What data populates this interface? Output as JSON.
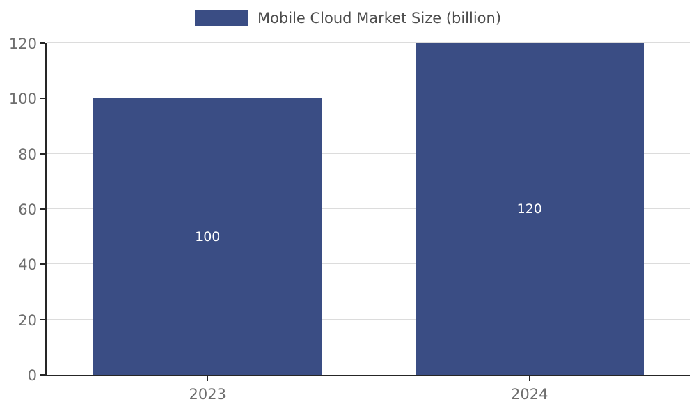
{
  "legend": {
    "label": "Mobile Cloud Market Size (billion)"
  },
  "colors": {
    "bar": "#3a4d84",
    "bar_value_label": "#ffffff",
    "axis_line": "#262626",
    "grid_line": "#dcdcdc",
    "tick_label": "#6e6e6e",
    "legend_text": "#4d4d4d",
    "background": "#ffffff"
  },
  "chart_data": {
    "type": "bar",
    "title": "Mobile Cloud Market Size (billion)",
    "categories": [
      "2023",
      "2024"
    ],
    "values": [
      100,
      120
    ],
    "value_labels": [
      "100",
      "120"
    ],
    "xlabel": "",
    "ylabel": "",
    "ylim": [
      0,
      120
    ],
    "yticks": [
      0,
      20,
      40,
      60,
      80,
      100,
      120
    ],
    "grid": true,
    "legend_position": "top-center",
    "bar_label_position": "center"
  }
}
